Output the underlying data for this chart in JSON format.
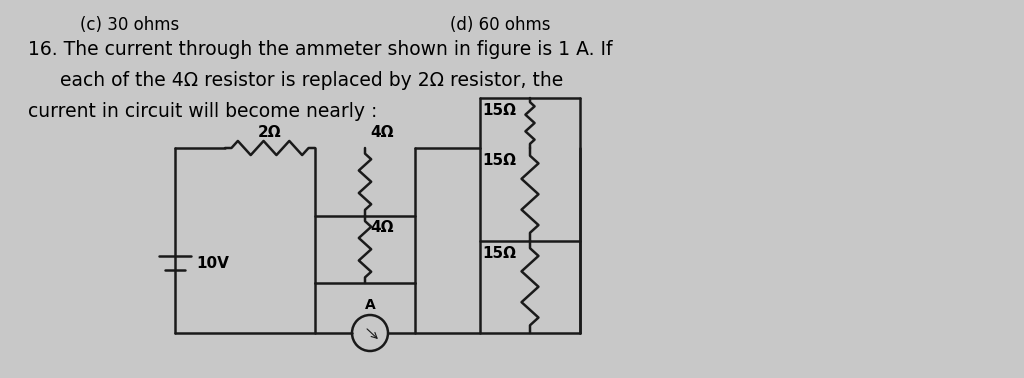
{
  "title_line1": "(c) 30 ohms",
  "title_line1b": "(d) 60 ohms",
  "title_line2": "16. The current through the ammeter shown in figure is 1 A. If",
  "title_line3": "each of the 4Ω resistor is replaced by 2Ω resistor, the",
  "title_line4": "current in circuit will become nearly :",
  "bg_color": "#c8c8c8",
  "text_color": "#000000",
  "circuit_color": "#1a1a1a",
  "label_2ohm": "2Ω",
  "label_4ohm_top": "4Ω",
  "label_4ohm_bot": "4Ω",
  "label_15ohm_above": "15Ω",
  "label_15ohm_top": "15Ω",
  "label_15ohm_bot": "15Ω",
  "label_10v": "10V",
  "label_ammeter": "A",
  "font_size_title": 14,
  "font_size_label": 11
}
